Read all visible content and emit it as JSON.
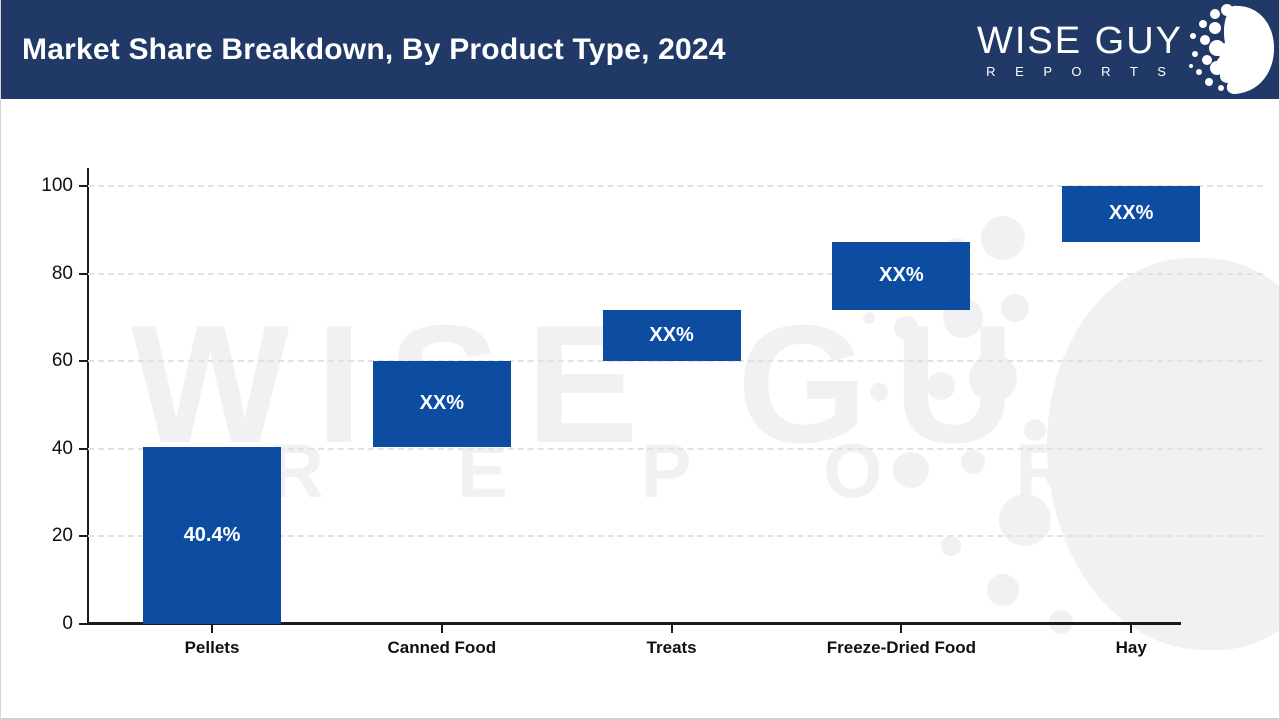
{
  "header": {
    "title": "Market Share Breakdown, By Product Type, 2024",
    "logo": {
      "line1": "WISE GUY",
      "line2": "R E P O R T S"
    }
  },
  "watermark": {
    "line1": "WISE GU",
    "line2": "R E P O R T S",
    "letter_y": "Y"
  },
  "chart_data": {
    "type": "bar",
    "subtype": "waterfall",
    "title": "Market Share Breakdown, By Product Type, 2024",
    "categories": [
      "Pellets",
      "Canned Food",
      "Treats",
      "Freeze-Dried Food",
      "Hay"
    ],
    "segments": [
      {
        "category": "Pellets",
        "start": 0,
        "end": 40.4,
        "label": "40.4%"
      },
      {
        "category": "Canned Food",
        "start": 40.4,
        "end": 60,
        "label": "XX%"
      },
      {
        "category": "Treats",
        "start": 60,
        "end": 71.6,
        "label": "XX%"
      },
      {
        "category": "Freeze-Dried Food",
        "start": 71.6,
        "end": 87.3,
        "label": "XX%"
      },
      {
        "category": "Hay",
        "start": 87.3,
        "end": 100,
        "label": "XX%"
      }
    ],
    "xlabel": "",
    "ylabel": "",
    "ylim": [
      0,
      105
    ],
    "yticks": [
      0,
      20,
      40,
      60,
      80,
      100
    ],
    "grid": "horizontal-dashed",
    "legend": null,
    "bar_color": "#0c4da2",
    "bar_label_color": "#ffffff",
    "masked_value_label": "XX%",
    "header_color": "#203966"
  }
}
